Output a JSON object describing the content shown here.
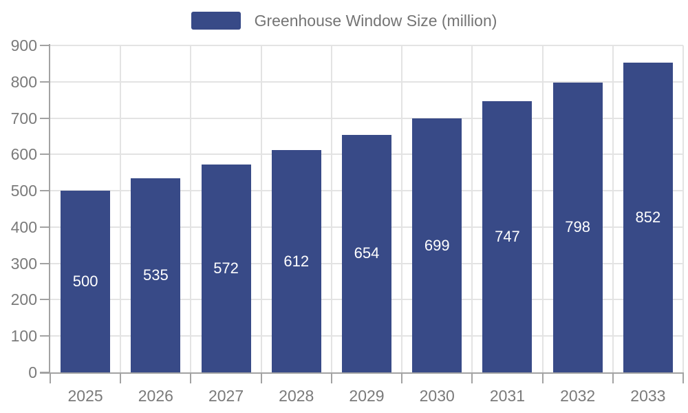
{
  "chart_data": {
    "type": "bar",
    "title": "Greenhouse Window Size (million)",
    "categories": [
      "2025",
      "2026",
      "2027",
      "2028",
      "2029",
      "2030",
      "2031",
      "2032",
      "2033"
    ],
    "series": [
      {
        "name": "Greenhouse Window Size (million)",
        "values": [
          500,
          535,
          572,
          612,
          654,
          699,
          747,
          798,
          852
        ]
      }
    ],
    "xlabel": "",
    "ylabel": "",
    "ylim": [
      0,
      900
    ],
    "ytick_step": 100,
    "grid": true,
    "bar_labels_visible": true,
    "legend": {
      "position": "top",
      "entries": [
        "Greenhouse Window Size (million)"
      ]
    },
    "colors": {
      "bar": "#384A87",
      "bar_label": "#FFFFFF",
      "axis_text": "#7A7A7A",
      "legend_text": "#747474",
      "gridline": "#E3E3E3",
      "axis_line": "#A2A2A2",
      "background": "#FFFFFF"
    }
  }
}
